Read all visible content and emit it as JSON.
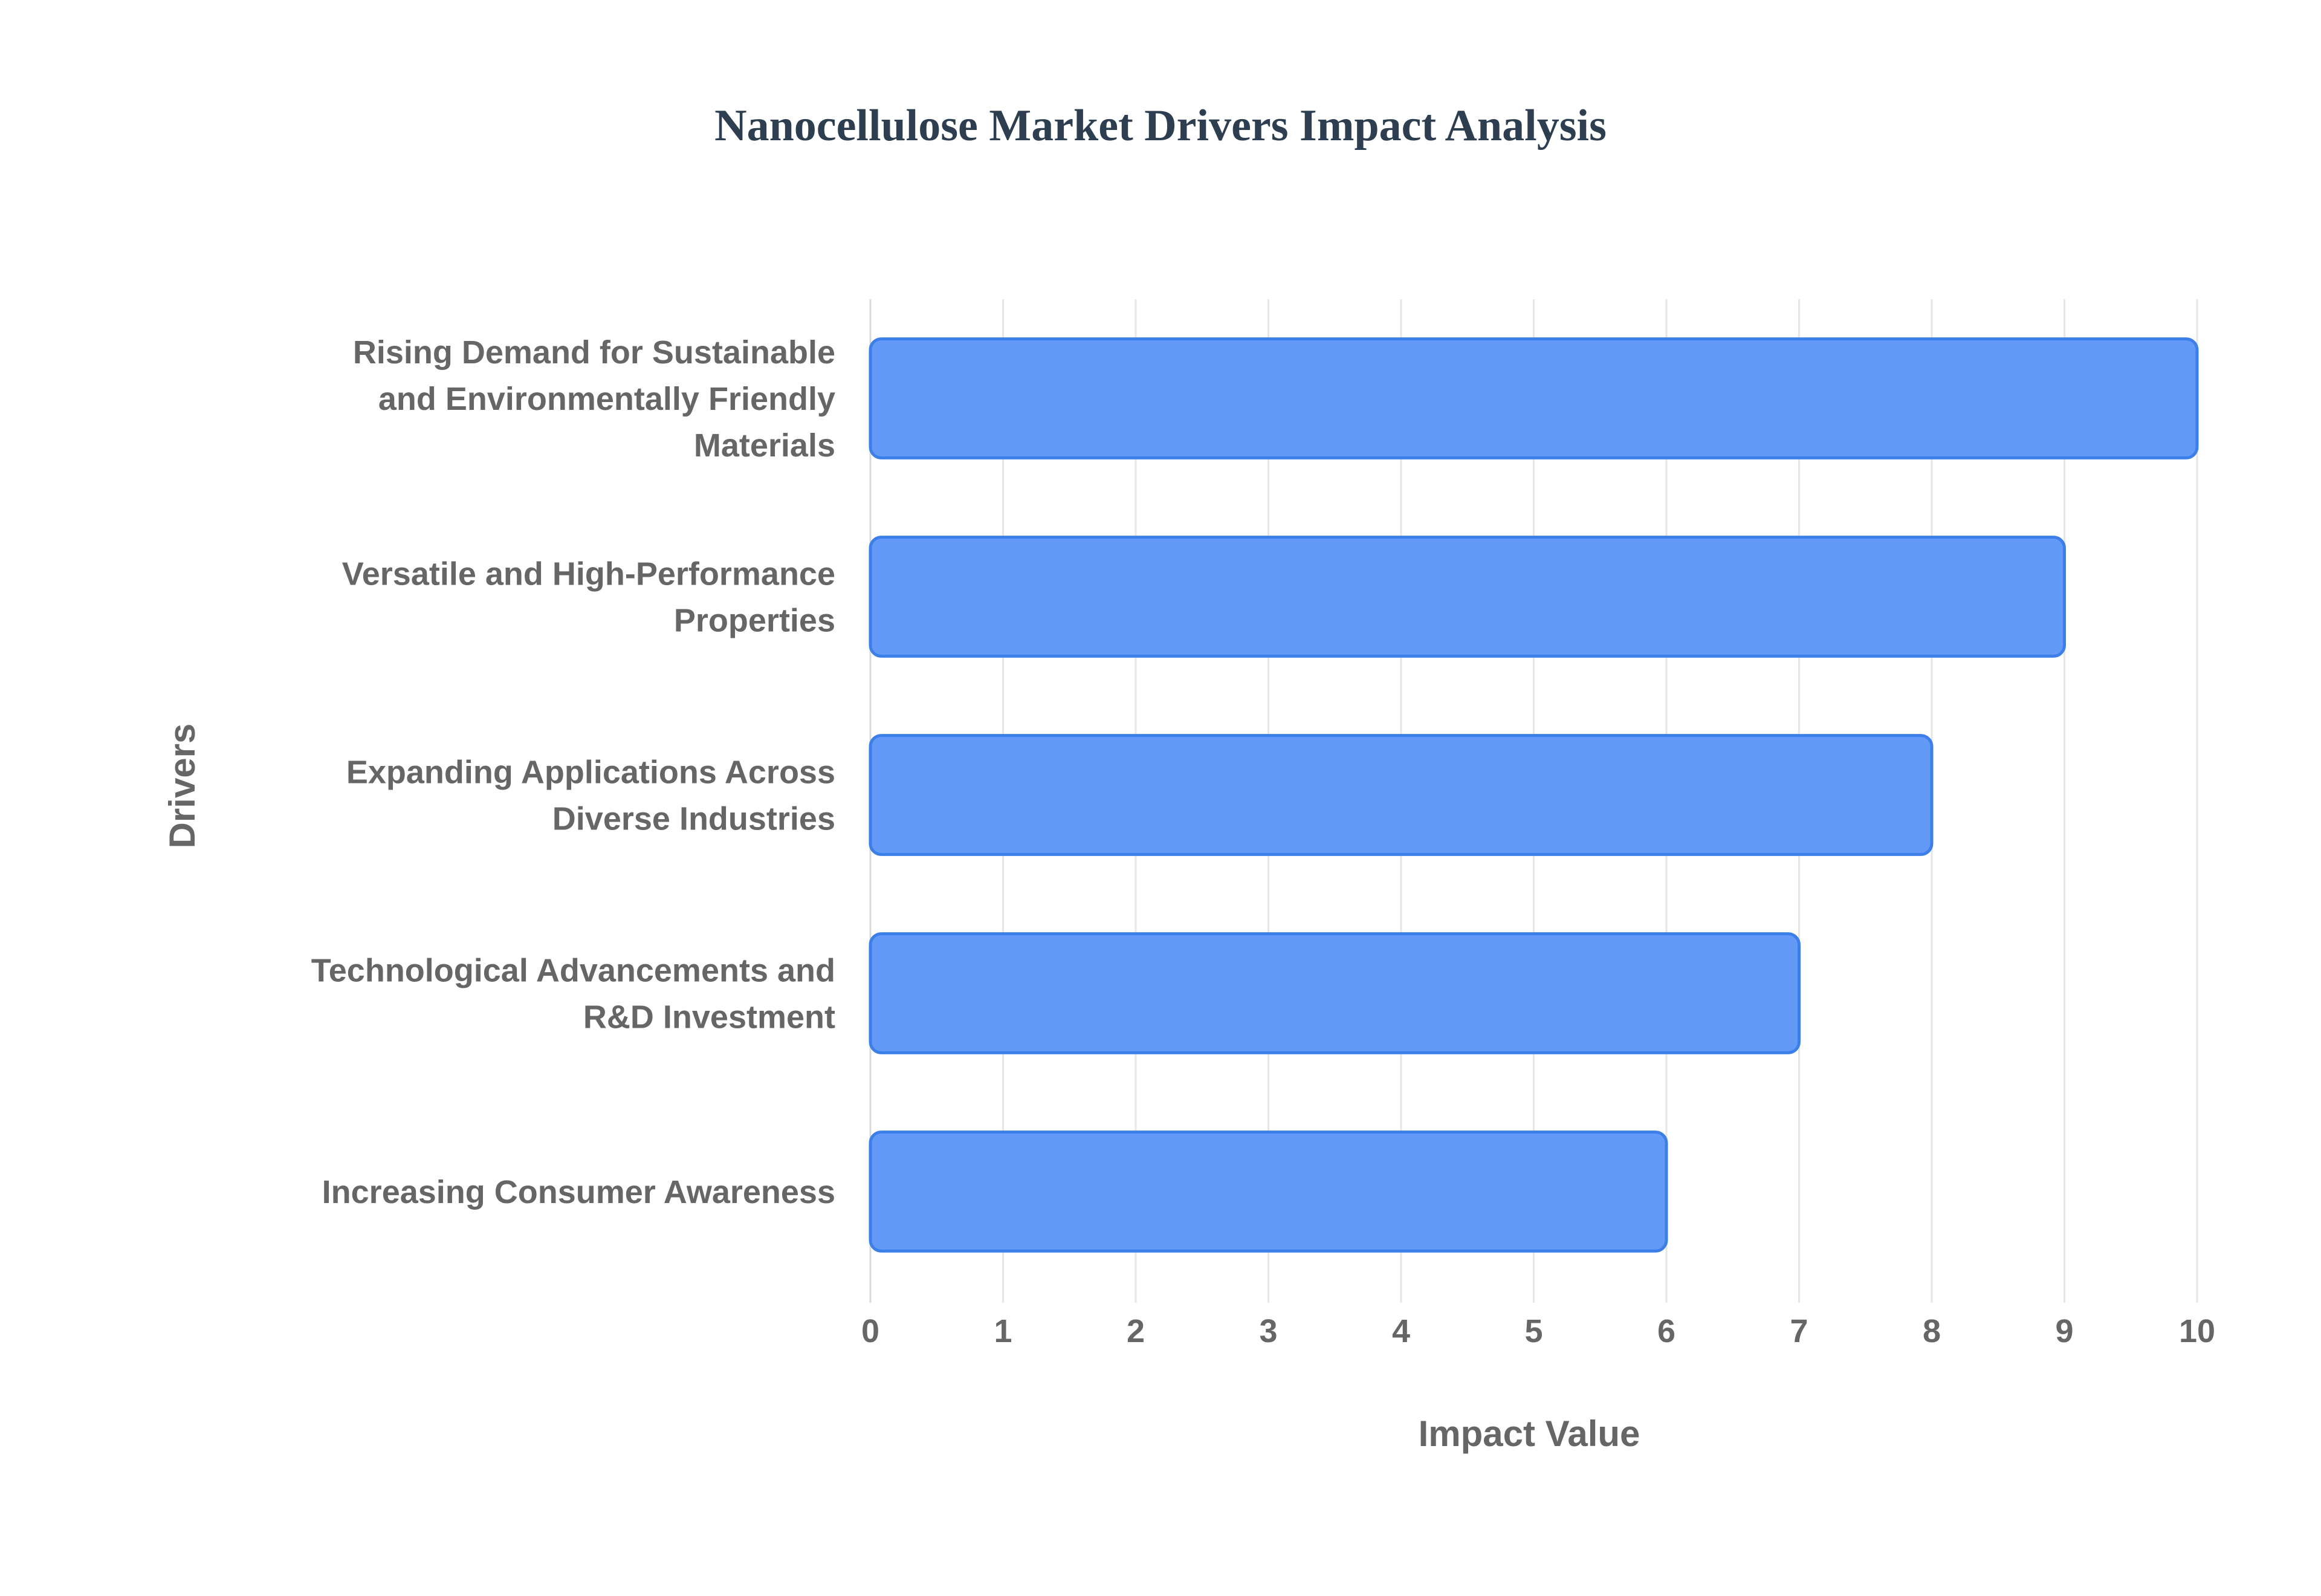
{
  "chart_data": {
    "type": "bar",
    "orientation": "horizontal",
    "title": "Nanocellulose Market Drivers Impact Analysis",
    "xlabel": "Impact Value",
    "ylabel": "Drivers",
    "xlim": [
      0,
      10
    ],
    "xticks": [
      0,
      1,
      2,
      3,
      4,
      5,
      6,
      7,
      8,
      9,
      10
    ],
    "grid": true,
    "legend": "none",
    "categories": [
      "Rising Demand for Sustainable and Environmentally Friendly Materials",
      "Versatile and High-Performance Properties",
      "Expanding Applications Across Diverse Industries",
      "Technological Advancements and R&D Investment",
      "Increasing Consumer Awareness"
    ],
    "category_lines": [
      [
        "Rising Demand for Sustainable",
        "and Environmentally Friendly",
        "Materials"
      ],
      [
        "Versatile and High-Performance",
        "Properties"
      ],
      [
        "Expanding Applications Across",
        "Diverse Industries"
      ],
      [
        "Technological Advancements and",
        "R&D Investment"
      ],
      [
        "Increasing Consumer Awareness"
      ]
    ],
    "values": [
      10,
      9,
      8,
      7,
      6
    ],
    "colors": {
      "bar_fill": "#6399f7",
      "bar_stroke": "#3d7fe8",
      "title": "#2c3e50",
      "text": "#666666",
      "grid": "#e6e6e6"
    }
  }
}
